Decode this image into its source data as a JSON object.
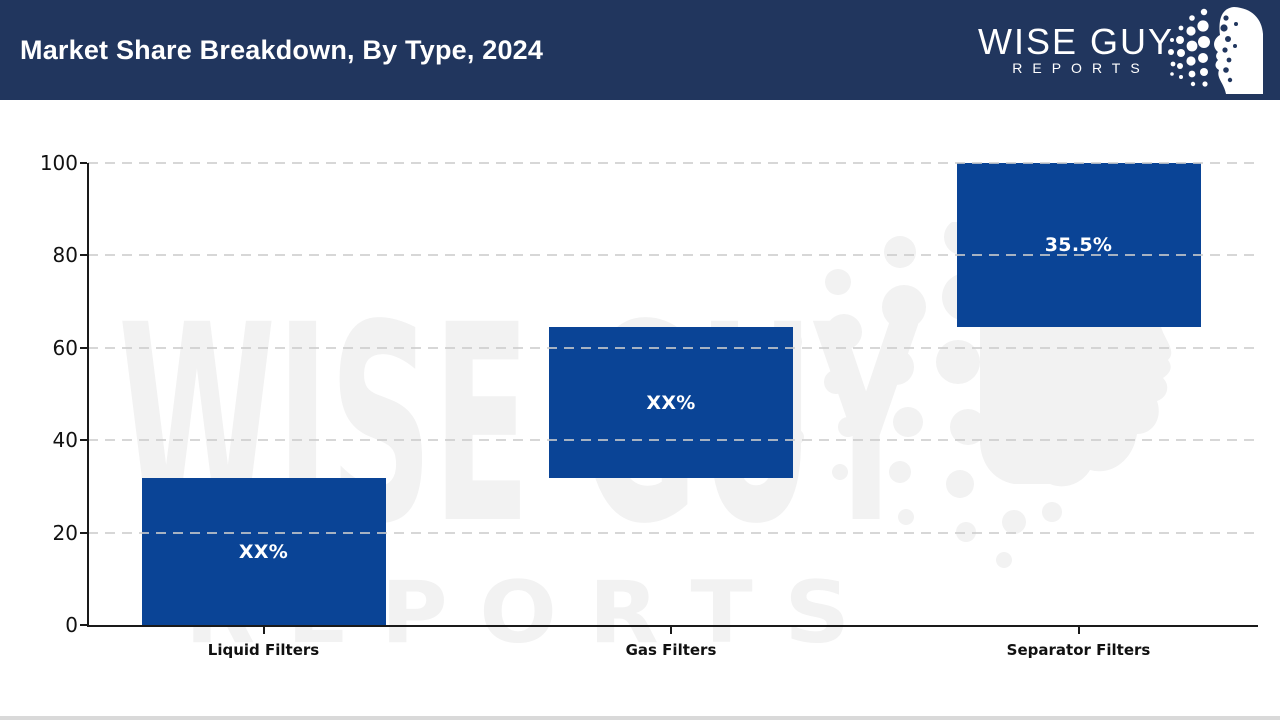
{
  "header": {
    "title": "Market Share Breakdown, By Type, 2024",
    "logo": {
      "primary": "WISE GUY",
      "secondary": "REPORTS"
    }
  },
  "watermark": {
    "primary": "WISE GUY",
    "secondary": "R E P O R T S"
  },
  "chart_data": {
    "type": "bar",
    "subtype": "floating-segment-waterfall",
    "title": "Market Share Breakdown, By Type, 2024",
    "categories": [
      "Liquid Filters",
      "Gas Filters",
      "Separator Filters"
    ],
    "segments": [
      {
        "category": "Liquid Filters",
        "start": 0,
        "end": 31.8,
        "label": "XX%"
      },
      {
        "category": "Gas Filters",
        "start": 31.8,
        "end": 64.4,
        "label": "XX%"
      },
      {
        "category": "Separator Filters",
        "start": 64.5,
        "end": 100,
        "label": "35.5%"
      }
    ],
    "xlabel": "",
    "ylabel": "",
    "ylim": [
      0,
      100
    ],
    "yticks": [
      0,
      20,
      40,
      60,
      80,
      100
    ],
    "grid": "horizontal-dashed",
    "legend": "none",
    "colors": {
      "bar": "#0a4496",
      "bar_label": "#ffffff",
      "grid": "#d8d8d8",
      "axis": "#1a1a1a",
      "header_bg": "#21365e",
      "header_text": "#ffffff",
      "watermark": "#f2f2f2",
      "footer_strip": "#d9d9d9"
    }
  }
}
